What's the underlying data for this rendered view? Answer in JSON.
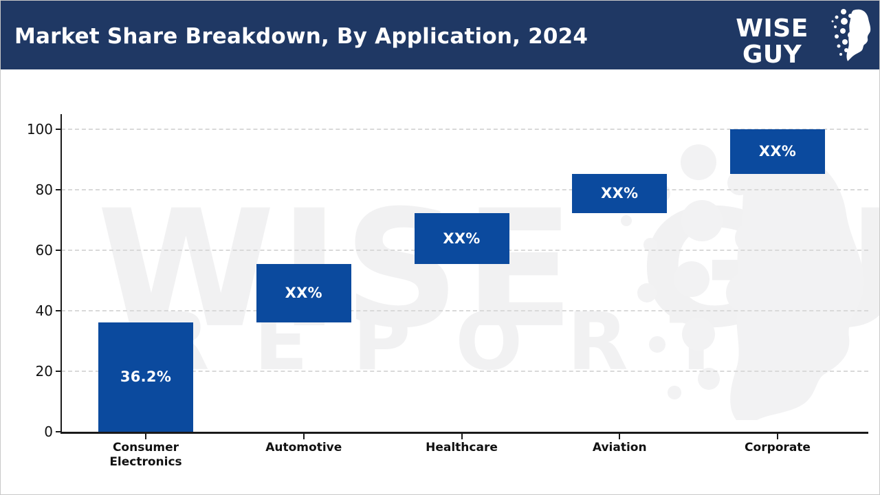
{
  "header": {
    "title": "Market Share Breakdown, By Application, 2024",
    "logo": {
      "line1": "WISE GUY",
      "line2": "R E P O R T S",
      "icon": "dotted-head-profile-icon"
    }
  },
  "watermark": {
    "line1": "WISE GUY",
    "line2": "REPORTS"
  },
  "colors": {
    "header_bg": "#1f3864",
    "bar_fill": "#0b4a9e",
    "bar_label_text": "#ffffff",
    "axis": "#1a1a1a",
    "gridline": "#d9d9d9",
    "watermark": "#f1f1f2"
  },
  "chart_data": {
    "type": "bar",
    "subtype": "waterfall",
    "title": "Market Share Breakdown, By Application, 2024",
    "xlabel": "",
    "ylabel": "",
    "ylim": [
      0,
      100
    ],
    "yticks": [
      0,
      20,
      40,
      60,
      80,
      100
    ],
    "grid": "horizontal-dashed",
    "legend": "none",
    "categories": [
      "Consumer Electronics",
      "Automotive",
      "Healthcare",
      "Aviation",
      "Corporate"
    ],
    "segments": [
      {
        "category": "Consumer Electronics",
        "axis_label_lines": [
          "Consumer",
          "Electronics"
        ],
        "start": 0,
        "end": 36.2,
        "value": 36.2,
        "label": "36.2%"
      },
      {
        "category": "Automotive",
        "axis_label_lines": [
          "Automotive"
        ],
        "start": 36.2,
        "end": 55.4,
        "value": 19.2,
        "label": "XX%"
      },
      {
        "category": "Healthcare",
        "axis_label_lines": [
          "Healthcare"
        ],
        "start": 55.4,
        "end": 72.3,
        "value": 16.9,
        "label": "XX%"
      },
      {
        "category": "Aviation",
        "axis_label_lines": [
          "Aviation"
        ],
        "start": 72.3,
        "end": 85.3,
        "value": 13.0,
        "label": "XX%"
      },
      {
        "category": "Corporate",
        "axis_label_lines": [
          "Corporate"
        ],
        "start": 85.3,
        "end": 100,
        "value": 14.7,
        "label": "XX%"
      }
    ]
  }
}
